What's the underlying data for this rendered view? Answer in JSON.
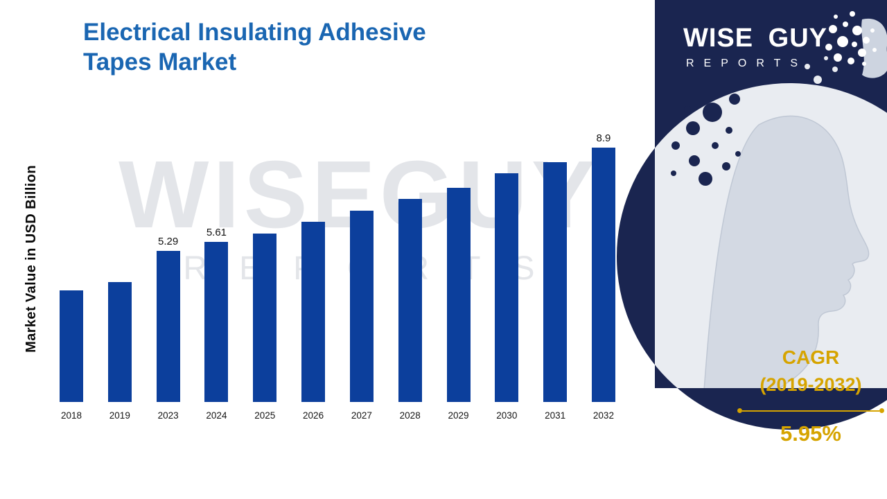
{
  "title": {
    "text": "Electrical Insulating Adhesive Tapes Market",
    "color": "#1a66b2"
  },
  "watermark": {
    "line1": "WISEGUY",
    "line2": "REPORTS"
  },
  "brand": {
    "name": "WISE GUY",
    "sub": "REPORTS"
  },
  "cagr": {
    "label": "CAGR",
    "range": "(2019-2032)",
    "value": "5.95%"
  },
  "colors": {
    "title_blue": "#1a66b2",
    "bar_blue": "#0c3f9c",
    "brand_navy": "#1a2550",
    "accent_gold": "#d6a400",
    "circle_gray": "#e9ecf1",
    "watermark_gray": "#e3e5e9"
  },
  "chart_data": {
    "type": "bar",
    "title": "Electrical Insulating Adhesive Tapes Market",
    "xlabel": "",
    "ylabel": "Market Value in USD Billion",
    "unit": "USD Billion",
    "categories": [
      "2018",
      "2019",
      "2023",
      "2024",
      "2025",
      "2026",
      "2027",
      "2028",
      "2029",
      "2030",
      "2031",
      "2032"
    ],
    "values": [
      3.9,
      4.2,
      5.29,
      5.61,
      5.9,
      6.3,
      6.7,
      7.1,
      7.5,
      8.0,
      8.4,
      8.9
    ],
    "data_labels": {
      "2023": "5.29",
      "2024": "5.61",
      "2032": "8.9"
    },
    "ylim": [
      0,
      9.7
    ],
    "bar_color": "#0c3f9c",
    "grid": false,
    "legend": false
  }
}
